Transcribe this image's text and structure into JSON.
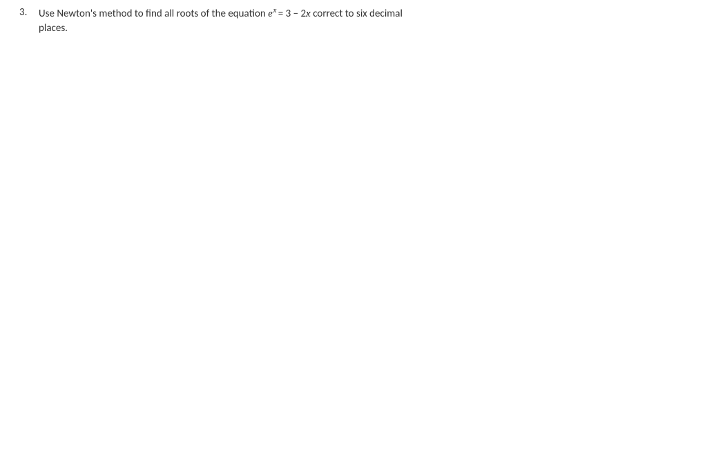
{
  "problem": {
    "number": "3.",
    "text_part1": "Use Newton's method to find all roots of the equation ",
    "equation": {
      "base": "e",
      "exponent": "x",
      "equals": " = 3 − 2",
      "variable": "x"
    },
    "text_part2": " correct to six decimal",
    "text_line2": "places."
  },
  "styling": {
    "background_color": "#ffffff",
    "text_color": "#333333",
    "font_size": 15,
    "font_family": "Calibri, Arial, sans-serif",
    "math_font_family": "Cambria Math, Cambria, serif"
  }
}
